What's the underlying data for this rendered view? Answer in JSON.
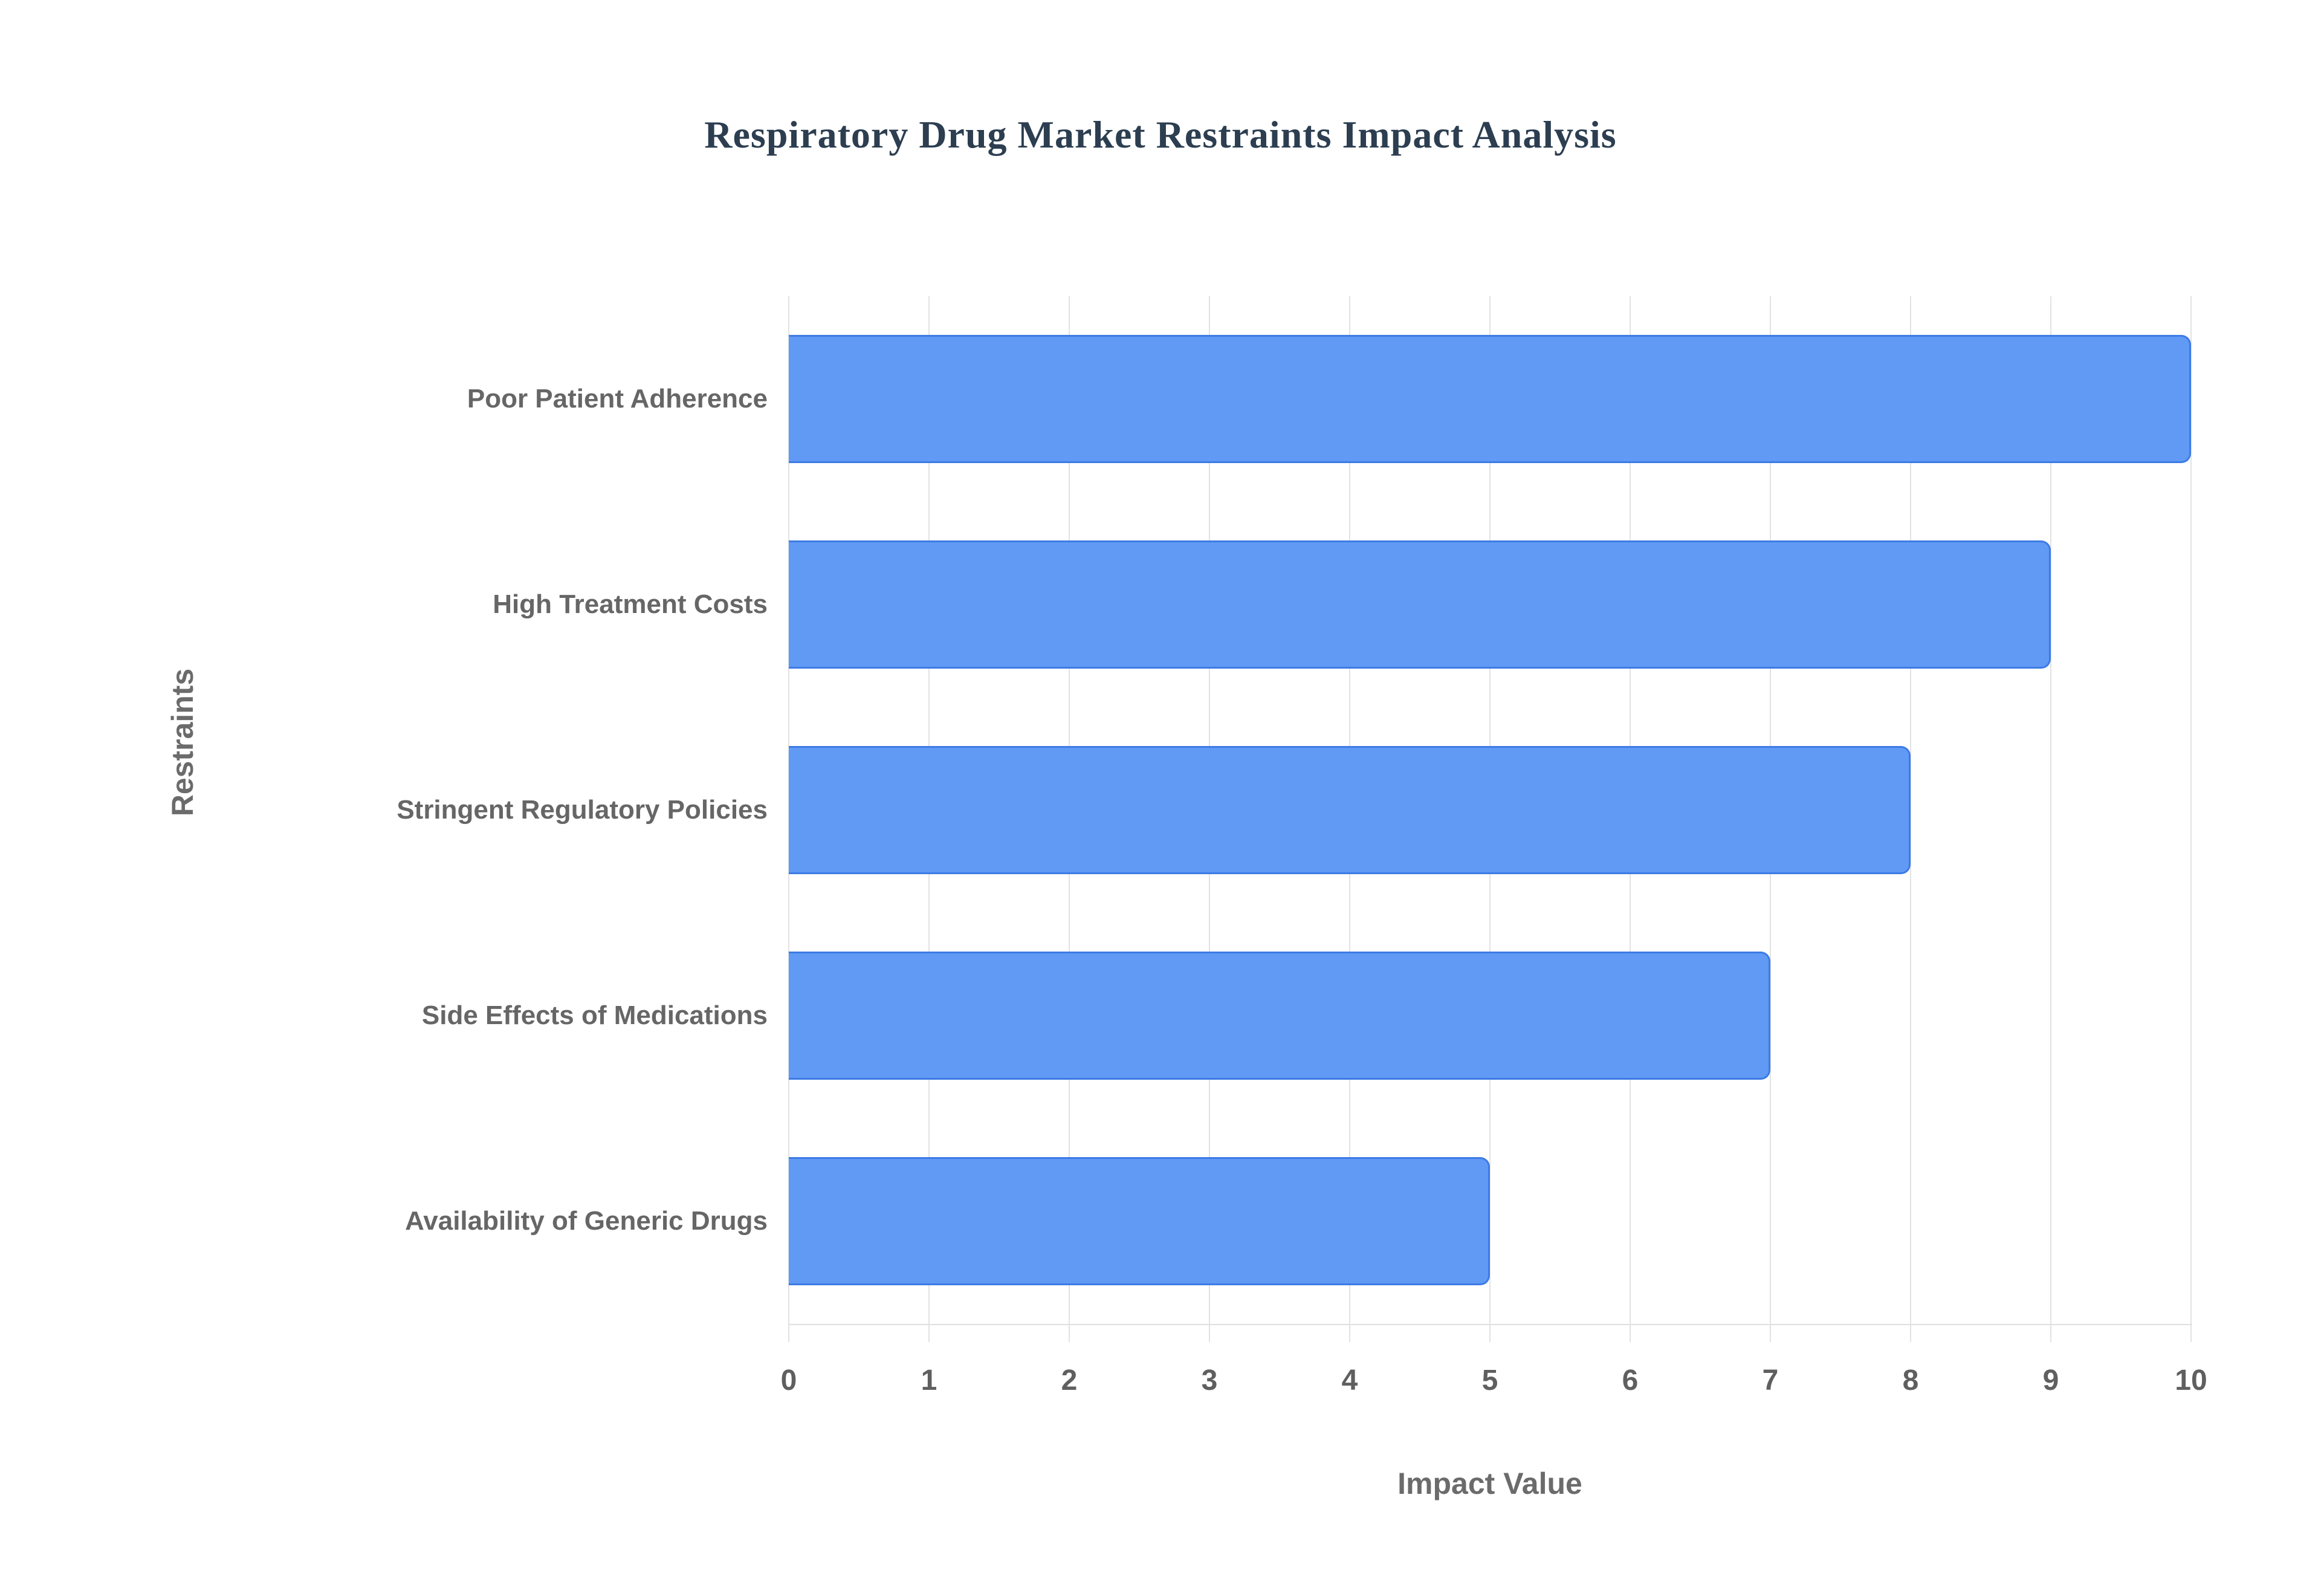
{
  "page": {
    "background": "#ffffff"
  },
  "chart_data": {
    "type": "bar",
    "orientation": "horizontal",
    "title": "Respiratory Drug Market Restraints Impact Analysis",
    "categories": [
      "Poor Patient Adherence",
      "High Treatment Costs",
      "Stringent Regulatory Policies",
      "Side Effects of Medications",
      "Availability of Generic Drugs"
    ],
    "values": [
      10,
      9,
      8,
      7,
      5
    ],
    "xlabel": "Impact Value",
    "ylabel": "Restraints",
    "xlim": [
      0,
      10
    ],
    "xticks": [
      0,
      1,
      2,
      3,
      4,
      5,
      6,
      7,
      8,
      9,
      10
    ],
    "grid": true,
    "legend_position": "none",
    "colors": {
      "bar_fill": "#609af5",
      "bar_border": "#3d7be5",
      "gridline": "#e2e2e2",
      "axis_baseline": "#e0e0e0",
      "tick_text": "#5f5f5f",
      "category_text": "#666666",
      "axis_title_text": "#6b6b6b",
      "title_text": "#2c3e50"
    }
  }
}
